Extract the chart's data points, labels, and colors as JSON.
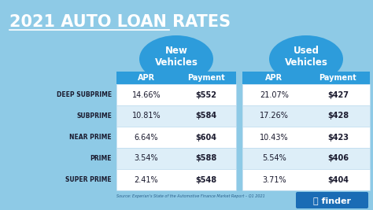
{
  "title": "2021 AUTO LOAN RATES",
  "bg_color": "#8ecae6",
  "bubble_color": "#2d9cdb",
  "table_header_color": "#2d9cdb",
  "table_light_row": "#f0f8ff",
  "table_sep_color": "#b0d8f0",
  "row_labels": [
    "DEEP SUBPRIME",
    "SUBPRIME",
    "NEAR PRIME",
    "PRIME",
    "SUPER PRIME"
  ],
  "new_apr": [
    "14.66%",
    "10.81%",
    "6.64%",
    "3.54%",
    "2.41%"
  ],
  "new_payment": [
    "$552",
    "$584",
    "$604",
    "$588",
    "$548"
  ],
  "used_apr": [
    "21.07%",
    "17.26%",
    "10.43%",
    "5.54%",
    "3.71%"
  ],
  "used_payment": [
    "$427",
    "$428",
    "$423",
    "$406",
    "$404"
  ],
  "source_text": "Source: Experian's State of the Automotive Finance Market Report – Q1 2021",
  "header_new": "New\nVehicles",
  "header_used": "Used\nVehicles",
  "col_headers": [
    "APR",
    "Payment",
    "APR",
    "Payment"
  ],
  "finder_bg": "#1a6cb5",
  "title_color": "#ffffff",
  "data_color": "#1a1a2e",
  "header_text_color": "#ffffff",
  "label_color": "#1a1a2e"
}
